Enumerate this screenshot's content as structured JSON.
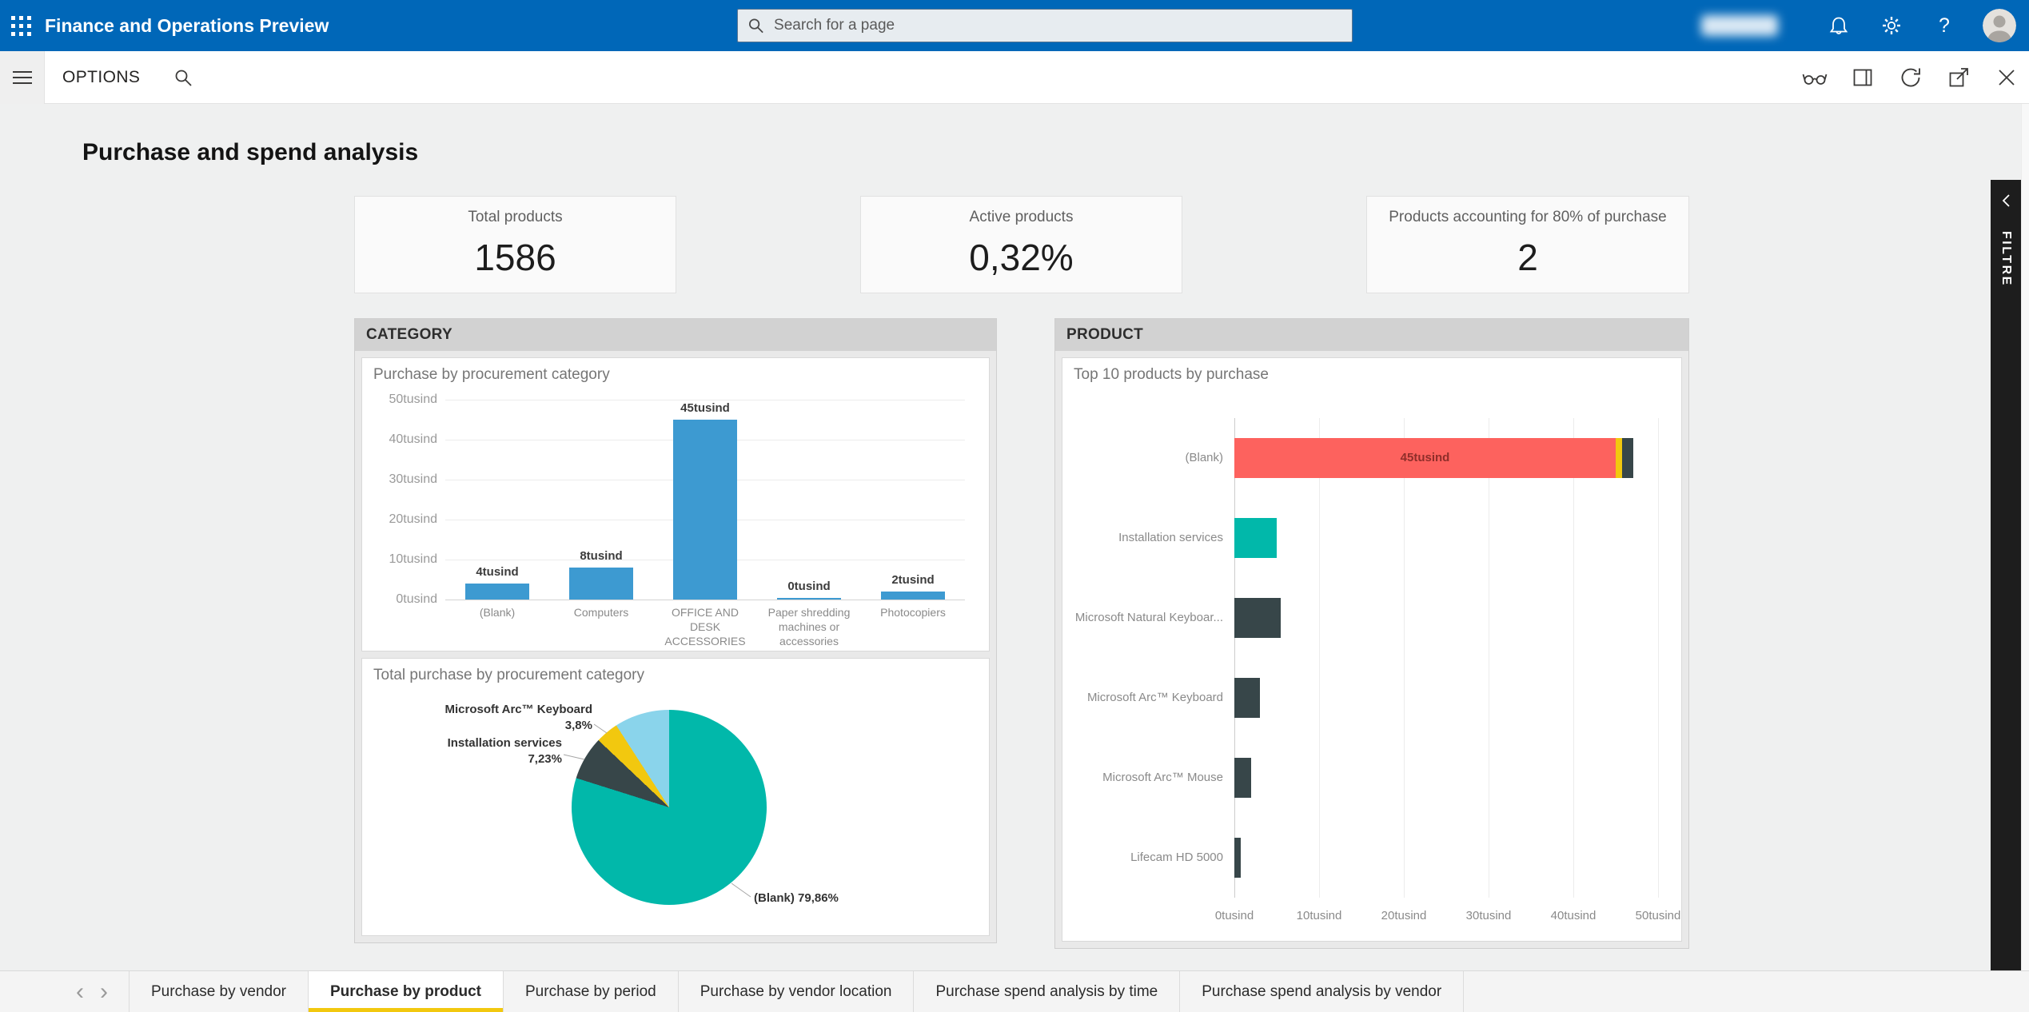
{
  "topbar": {
    "app_title": "Finance and Operations Preview",
    "search_placeholder": "Search for a page",
    "icons": [
      "app-launcher",
      "search",
      "notifications-bell",
      "settings-gear",
      "help-question",
      "account-avatar"
    ]
  },
  "command_bar": {
    "options_label": "OPTIONS",
    "icons": [
      "hamburger-menu",
      "search",
      "glasses",
      "side-panel",
      "refresh",
      "open-in-new-window",
      "close"
    ]
  },
  "page": {
    "title": "Purchase and spend analysis"
  },
  "kpis": [
    {
      "label": "Total products",
      "value": "1586"
    },
    {
      "label": "Active products",
      "value": "0,32%"
    },
    {
      "label": "Products accounting for 80% of purchase",
      "value": "2"
    }
  ],
  "panels": {
    "left_header": "CATEGORY",
    "right_header": "PRODUCT"
  },
  "filter_pane": {
    "label": "FILTRE"
  },
  "tab_bar": {
    "tabs": [
      {
        "label": "Purchase by vendor",
        "active": false
      },
      {
        "label": "Purchase by product",
        "active": true
      },
      {
        "label": "Purchase by period",
        "active": false
      },
      {
        "label": "Purchase by vendor location",
        "active": false
      },
      {
        "label": "Purchase spend analysis by time",
        "active": false
      },
      {
        "label": "Purchase spend analysis by vendor",
        "active": false
      }
    ]
  },
  "colors": {
    "header_blue": "#0067B8",
    "accent_yellow": "#F2C80F",
    "bar_blue": "#3D9AD1",
    "teal": "#01B8AA",
    "coral": "#FD625E",
    "dark_slate": "#374649",
    "light_blue": "#8AD4EB",
    "filter_pane_black": "#1D1D1D"
  },
  "chart_data": [
    {
      "type": "bar",
      "title": "Purchase by procurement category",
      "unit": "tusind",
      "categories": [
        "(Blank)",
        "Computers",
        "OFFICE AND DESK ACCESSORIES",
        "Paper shredding machines or accessories",
        "Photocopiers"
      ],
      "values": [
        4,
        8,
        45,
        0.4,
        2
      ],
      "data_labels": [
        "4tusind",
        "8tusind",
        "45tusind",
        "0tusind",
        "2tusind"
      ],
      "y_ticks": [
        "0tusind",
        "10tusind",
        "20tusind",
        "30tusind",
        "40tusind",
        "50tusind"
      ],
      "ylim": [
        0,
        50
      ],
      "grid": true,
      "legend": "none",
      "bar_color": "#3D9AD1"
    },
    {
      "type": "pie",
      "title": "Total purchase by procurement category",
      "slices": [
        {
          "label": "(Blank)",
          "pct": 79.86,
          "display": "(Blank) 79,86%",
          "color": "#01B8AA"
        },
        {
          "label": "Installation services",
          "pct": 7.23,
          "pct_display": "7,23%",
          "color": "#374649"
        },
        {
          "label": "Microsoft Arc™ Keyboard",
          "pct": 3.8,
          "pct_display": "3,8%",
          "color": "#F2C80F"
        },
        {
          "pct": 9.11,
          "color": "#8AD4EB"
        }
      ]
    },
    {
      "type": "bar",
      "orientation": "horizontal",
      "title": "Top 10 products by purchase",
      "unit": "tusind",
      "categories": [
        "(Blank)",
        "Installation services",
        "Microsoft Natural Keyboar...",
        "Microsoft Arc™ Keyboard",
        "Microsoft Arc™ Mouse",
        "Lifecam HD 5000"
      ],
      "values": [
        45,
        5,
        5.5,
        3,
        2,
        0.8
      ],
      "bar_colors": [
        "#FD625E",
        "#01B8AA",
        "#374649",
        "#374649",
        "#374649",
        "#374649"
      ],
      "stacked_tip_on_first_bar": [
        {
          "color": "#F2C80F",
          "value": 0.8
        },
        {
          "color": "#374649",
          "value": 1.3
        }
      ],
      "data_labels": [
        "45tusind",
        "",
        "",
        "",
        "",
        ""
      ],
      "x_ticks": [
        "0tusind",
        "10tusind",
        "20tusind",
        "30tusind",
        "40tusind",
        "50tusind"
      ],
      "xlim": [
        0,
        50
      ],
      "grid": true
    }
  ]
}
